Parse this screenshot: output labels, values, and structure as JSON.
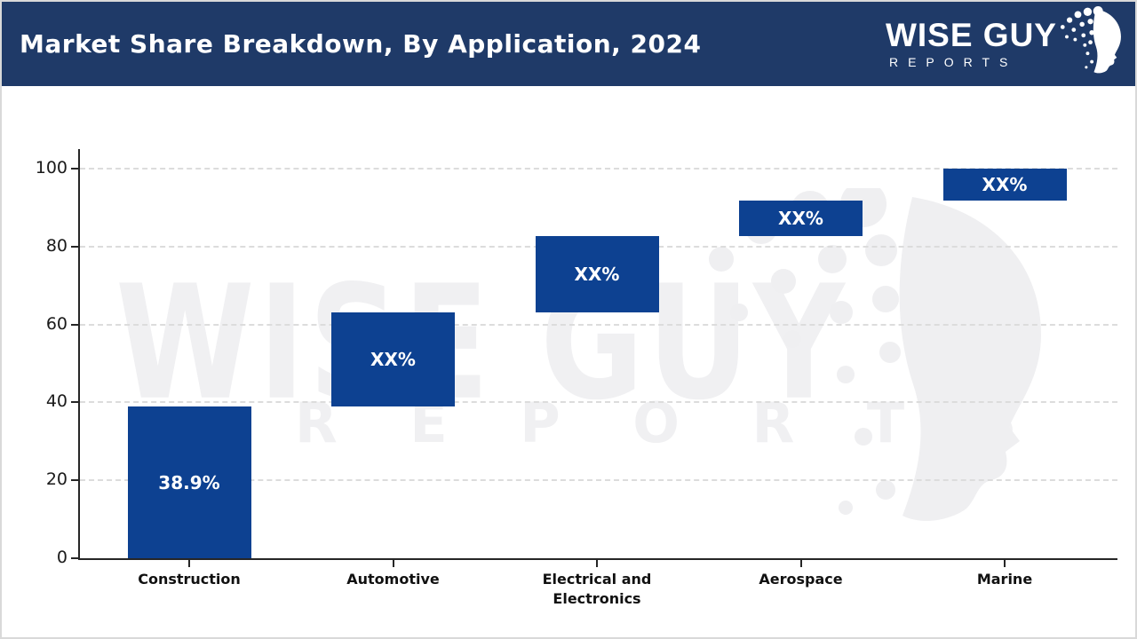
{
  "header": {
    "title": "Market Share Breakdown, By Application, 2024",
    "logo": {
      "line1": "WISE GUY",
      "line2": "REPORTS",
      "icon": "wiseguy-head-icon"
    }
  },
  "watermark": {
    "line1": "WISE GUY",
    "line2": "R E P O R T S",
    "icon": "wiseguy-head-watermark-icon"
  },
  "chart_data": {
    "type": "bar",
    "subtype": "waterfall",
    "title": "Market Share Breakdown, By Application, 2024",
    "xlabel": "",
    "ylabel": "",
    "ylim": [
      0,
      105
    ],
    "yticks": [
      0,
      20,
      40,
      60,
      80,
      100
    ],
    "grid": "horizontal-dashed",
    "legend": "none",
    "categories": [
      "Construction",
      "Automotive",
      "Electrical and Electronics",
      "Aerospace",
      "Marine"
    ],
    "category_lines": [
      [
        "Construction"
      ],
      [
        "Automotive"
      ],
      [
        "Electrical and",
        "Electronics"
      ],
      [
        "Aerospace"
      ],
      [
        "Marine"
      ]
    ],
    "segments": [
      {
        "category": "Construction",
        "start": 0,
        "end": 38.9,
        "label": "38.9%"
      },
      {
        "category": "Automotive",
        "start": 38.9,
        "end": 63.2,
        "label": "XX%"
      },
      {
        "category": "Electrical and Electronics",
        "start": 63.2,
        "end": 82.7,
        "label": "XX%"
      },
      {
        "category": "Aerospace",
        "start": 82.7,
        "end": 91.8,
        "label": "XX%"
      },
      {
        "category": "Marine",
        "start": 91.8,
        "end": 100,
        "label": "XX%"
      }
    ]
  },
  "colors": {
    "header_bg": "#1f3a68",
    "bar": "#0d4191",
    "bar_label": "#ffffff",
    "axis": "#262626",
    "grid": "#dcdcdc",
    "watermark": "#f0f0f2",
    "page_border": "#d9d9d9"
  }
}
